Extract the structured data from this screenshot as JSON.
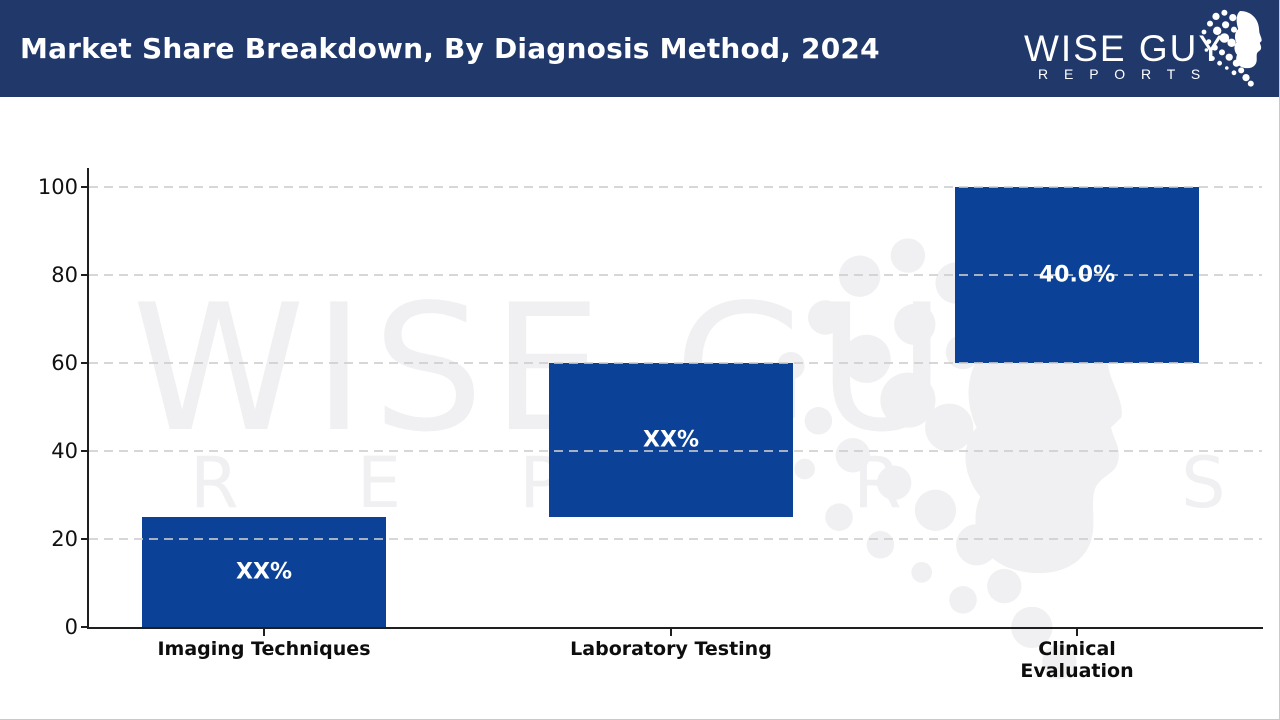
{
  "header": {
    "title": "Market Share Breakdown, By Diagnosis Method, 2024",
    "logo": {
      "wordmark": "WISE GUY",
      "subtext": "R E P O R T S"
    }
  },
  "watermark": {
    "wordmark": "WISE GUY",
    "subtext": "R E P O R T S"
  },
  "colors": {
    "header_bg": "#21386B",
    "title_text": "#FFFFFF",
    "bar": "#0B4298",
    "bar_label": "#FFFFFF",
    "axis": "#1F1F1F",
    "grid": "#CDCDCD",
    "watermark": "#F0F0F2"
  },
  "chart_data": {
    "type": "bar",
    "subtype": "floating-range-bars",
    "title": "Market Share Breakdown, By Diagnosis Method, 2024",
    "categories": [
      "Imaging Techniques",
      "Laboratory Testing",
      "Clinical Evaluation"
    ],
    "category_display": [
      "Imaging Techniques",
      "Laboratory Testing",
      "Clinical\nEvaluation"
    ],
    "bars": [
      {
        "category": "Imaging Techniques",
        "start": 0,
        "end": 25,
        "label": "XX%"
      },
      {
        "category": "Laboratory Testing",
        "start": 25,
        "end": 60,
        "label": "XX%"
      },
      {
        "category": "Clinical Evaluation",
        "start": 60,
        "end": 100,
        "label": "40.0%"
      }
    ],
    "xlabel": "",
    "ylabel": "",
    "yticks": [
      0,
      20,
      40,
      60,
      80,
      100
    ],
    "ylim": [
      0,
      104
    ],
    "grid": "dashed-horizontal",
    "legend": "none"
  }
}
